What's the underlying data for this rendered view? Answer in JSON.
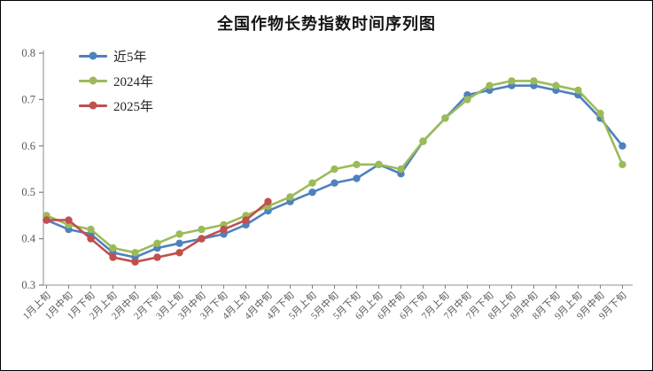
{
  "chart_data": {
    "type": "line",
    "title": "全国作物长势指数时间序列图",
    "categories": [
      "1月上旬",
      "1月中旬",
      "1月下旬",
      "2月上旬",
      "2月中旬",
      "2月下旬",
      "3月上旬",
      "3月中旬",
      "3月下旬",
      "4月上旬",
      "4月中旬",
      "4月下旬",
      "5月上旬",
      "5月中旬",
      "5月下旬",
      "6月上旬",
      "6月中旬",
      "6月下旬",
      "7月上旬",
      "7月中旬",
      "7月下旬",
      "8月上旬",
      "8月中旬",
      "8月下旬",
      "9月上旬",
      "9月中旬",
      "9月下旬"
    ],
    "series": [
      {
        "name": "近5年",
        "color": "#4F81BD",
        "values": [
          0.44,
          0.42,
          0.41,
          0.37,
          0.36,
          0.38,
          0.39,
          0.4,
          0.41,
          0.43,
          0.46,
          0.48,
          0.5,
          0.52,
          0.53,
          0.56,
          0.54,
          0.61,
          0.66,
          0.71,
          0.72,
          0.73,
          0.73,
          0.72,
          0.71,
          0.66,
          0.6
        ]
      },
      {
        "name": "2024年",
        "color": "#9BBB59",
        "values": [
          0.45,
          0.43,
          0.42,
          0.38,
          0.37,
          0.39,
          0.41,
          0.42,
          0.43,
          0.45,
          0.47,
          0.49,
          0.52,
          0.55,
          0.56,
          0.56,
          0.55,
          0.61,
          0.66,
          0.7,
          0.73,
          0.74,
          0.74,
          0.73,
          0.72,
          0.67,
          0.56
        ]
      },
      {
        "name": "2025年",
        "color": "#C0504D",
        "values": [
          0.44,
          0.44,
          0.4,
          0.36,
          0.35,
          0.36,
          0.37,
          0.4,
          0.42,
          0.44,
          0.48,
          null,
          null,
          null,
          null,
          null,
          null,
          null,
          null,
          null,
          null,
          null,
          null,
          null,
          null,
          null,
          null
        ]
      }
    ],
    "ylim": [
      0.3,
      0.8
    ],
    "ytick_labels": [
      "0.8",
      "0.7",
      "0.6",
      "0.5",
      "0.4",
      "0.3"
    ],
    "ytick_values": [
      0.8,
      0.7,
      0.6,
      0.5,
      0.4,
      0.3
    ],
    "legend_position": "top-left",
    "grid": false,
    "axis_color": "#a6a6a6",
    "tick_color": "#808080",
    "label_color": "#595959"
  }
}
